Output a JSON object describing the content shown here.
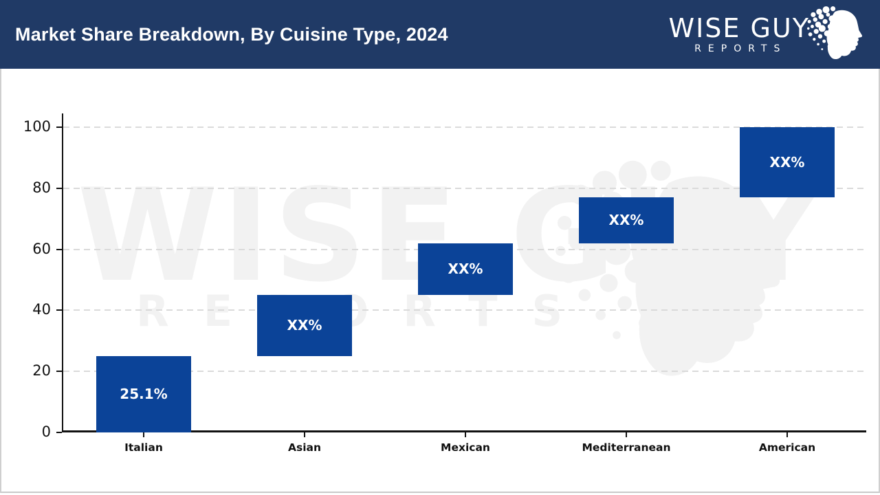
{
  "header": {
    "title": "Market Share Breakdown, By Cuisine Type, 2024",
    "logo": {
      "line1": "WISE GUY",
      "line2": "REPORTS"
    }
  },
  "watermark": {
    "line1": "WISE GUY",
    "line2": "REPORTS"
  },
  "chart_data": {
    "type": "bar",
    "subtype": "waterfall",
    "title": "Market Share Breakdown, By Cuisine Type, 2024",
    "categories": [
      "Italian",
      "Asian",
      "Mexican",
      "Mediterranean",
      "American"
    ],
    "segments": [
      {
        "category": "Italian",
        "start": 0,
        "end": 25.1,
        "label": "25.1%"
      },
      {
        "category": "Asian",
        "start": 25.1,
        "end": 45,
        "label": "XX%"
      },
      {
        "category": "Mexican",
        "start": 45,
        "end": 62,
        "label": "XX%"
      },
      {
        "category": "Mediterranean",
        "start": 62,
        "end": 77,
        "label": "XX%"
      },
      {
        "category": "American",
        "start": 77,
        "end": 100,
        "label": "XX%"
      }
    ],
    "xlabel": "",
    "ylabel": "",
    "ylim": [
      0,
      104.5
    ],
    "yticks": [
      0,
      20,
      40,
      60,
      80,
      100
    ],
    "grid": "horizontal-dashed",
    "legend": "none",
    "colors": {
      "bar": "#0b4398",
      "bar_label": "#ffffff",
      "grid": "#dadada",
      "axis": "#111111",
      "header_bg": "#203a66",
      "watermark": "#f2f2f2"
    }
  }
}
